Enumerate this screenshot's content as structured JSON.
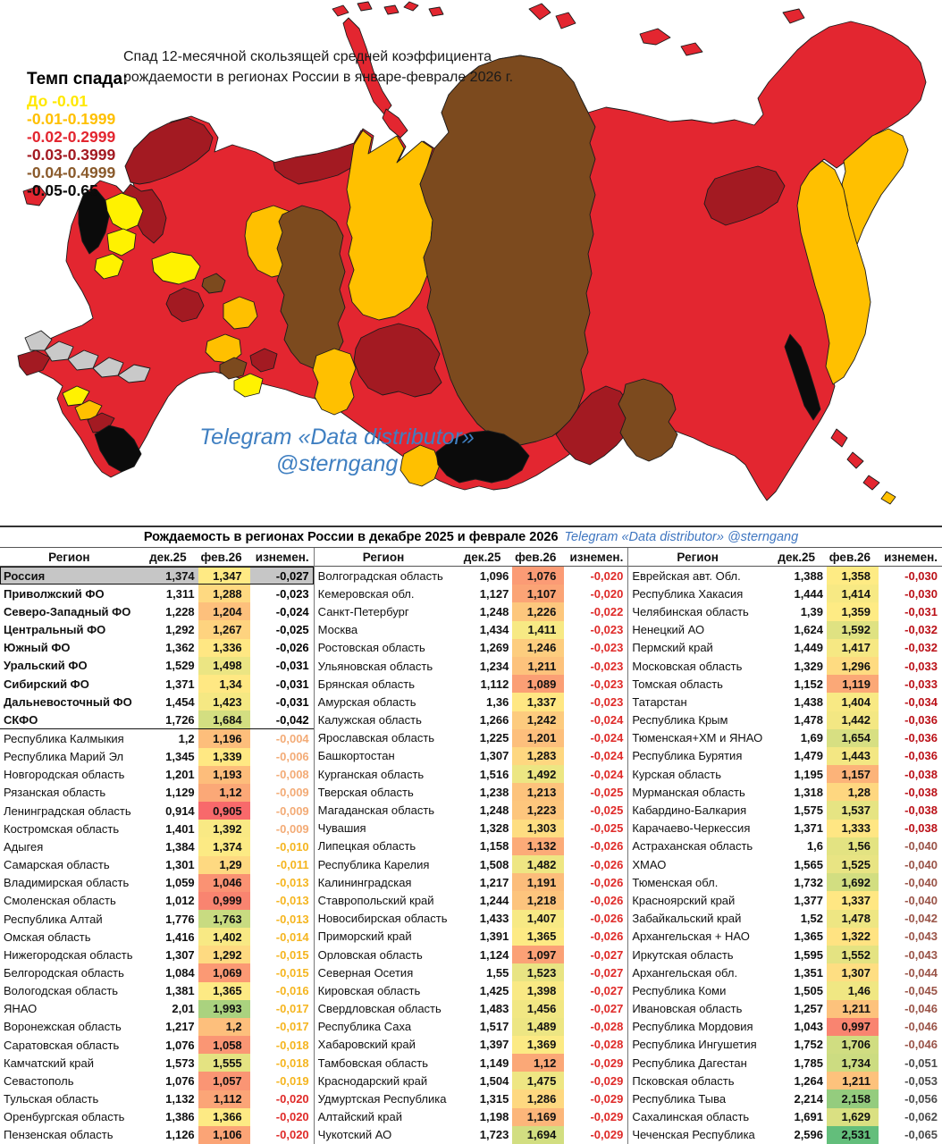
{
  "map": {
    "title_line1": "Спад 12-месячной скользящей средней коэффициента",
    "title_line2": "рождаемости в регионах России в январе-феврале 2026 г.",
    "legend_title": "Темп спада:",
    "legend_items": [
      {
        "label": "До -0.01",
        "color": "#ffe800"
      },
      {
        "label": "-0.01-0.1999",
        "color": "#ffc000"
      },
      {
        "label": "-0.02-0.2999",
        "color": "#e32630"
      },
      {
        "label": "-0.03-0.3999",
        "color": "#a31a22"
      },
      {
        "label": "-0.04-0.4999",
        "color": "#8a5a2b"
      },
      {
        "label": "-0.05-0.65",
        "color": "#0b0b0b"
      }
    ],
    "watermark_line1": "Telegram «Data distributor»",
    "watermark_line2": "@sterngang",
    "palette": {
      "red": "#e32630",
      "dark_red": "#a31a22",
      "brown": "#7c4a1e",
      "gold": "#ffc000",
      "yellow": "#fff200",
      "black": "#0b0b0b",
      "no_data_gray": "#c9c9c9"
    }
  },
  "table": {
    "title": "Рождаемость в регионах России в декабре 2025 и феврале 2026",
    "title_watermark": "Telegram «Data distributor» @sterngang",
    "columns": {
      "region": "Регион",
      "dec": "дек.25",
      "feb": "фев.26",
      "chg": "изнемен."
    }
  },
  "chart_data": {
    "type": "table",
    "title": "Рождаемость в регионах России в декабре 2025 и феврале 2026",
    "columns": [
      "Регион",
      "дек.25",
      "фев.26",
      "изнемен."
    ],
    "color_scale": {
      "min_value": 0.905,
      "mid_value": 1.35,
      "max_value": 2.531,
      "min_color": "#f8696b",
      "mid_color": "#ffeb84",
      "max_color": "#63be7b"
    },
    "groups": [
      [
        {
          "name": "Россия",
          "dec": "1,374",
          "feb": "1,347",
          "chg": "-0,027",
          "bold": true,
          "gray": true
        },
        {
          "name": "Приволжский ФО",
          "dec": "1,311",
          "feb": "1,288",
          "chg": "-0,023",
          "bold": true
        },
        {
          "name": "Северо-Западный ФО",
          "dec": "1,228",
          "feb": "1,204",
          "chg": "-0,024",
          "bold": true
        },
        {
          "name": "Центральный ФО",
          "dec": "1,292",
          "feb": "1,267",
          "chg": "-0,025",
          "bold": true
        },
        {
          "name": "Южный ФО",
          "dec": "1,362",
          "feb": "1,336",
          "chg": "-0,026",
          "bold": true
        },
        {
          "name": "Уральский ФО",
          "dec": "1,529",
          "feb": "1,498",
          "chg": "-0,031",
          "bold": true
        },
        {
          "name": "Сибирский ФО",
          "dec": "1,371",
          "feb": "1,34",
          "chg": "-0,031",
          "bold": true
        },
        {
          "name": "Дальневосточный ФО",
          "dec": "1,454",
          "feb": "1,423",
          "chg": "-0,031",
          "bold": true
        },
        {
          "name": "СКФО",
          "dec": "1,726",
          "feb": "1,684",
          "chg": "-0,042",
          "bold": true,
          "blockEnd": true
        },
        {
          "name": "Республика Калмыкия",
          "dec": "1,2",
          "feb": "1,196",
          "chg": "-0,004"
        },
        {
          "name": "Республика Марий Эл",
          "dec": "1,345",
          "feb": "1,339",
          "chg": "-0,006"
        },
        {
          "name": "Новгородская область",
          "dec": "1,201",
          "feb": "1,193",
          "chg": "-0,008"
        },
        {
          "name": "Рязанская область",
          "dec": "1,129",
          "feb": "1,12",
          "chg": "-0,009"
        },
        {
          "name": "Ленинградская область",
          "dec": "0,914",
          "feb": "0,905",
          "chg": "-0,009"
        },
        {
          "name": "Костромская область",
          "dec": "1,401",
          "feb": "1,392",
          "chg": "-0,009"
        },
        {
          "name": "Адыгея",
          "dec": "1,384",
          "feb": "1,374",
          "chg": "-0,010"
        },
        {
          "name": "Самарская область",
          "dec": "1,301",
          "feb": "1,29",
          "chg": "-0,011"
        },
        {
          "name": "Владимирская область",
          "dec": "1,059",
          "feb": "1,046",
          "chg": "-0,013"
        },
        {
          "name": "Смоленская область",
          "dec": "1,012",
          "feb": "0,999",
          "chg": "-0,013"
        },
        {
          "name": "Республика Алтай",
          "dec": "1,776",
          "feb": "1,763",
          "chg": "-0,013"
        },
        {
          "name": "Омская область",
          "dec": "1,416",
          "feb": "1,402",
          "chg": "-0,014"
        },
        {
          "name": "Нижегородская область",
          "dec": "1,307",
          "feb": "1,292",
          "chg": "-0,015"
        },
        {
          "name": "Белгородская область",
          "dec": "1,084",
          "feb": "1,069",
          "chg": "-0,015"
        },
        {
          "name": "Вологодская область",
          "dec": "1,381",
          "feb": "1,365",
          "chg": "-0,016"
        },
        {
          "name": "ЯНАО",
          "dec": "2,01",
          "feb": "1,993",
          "chg": "-0,017"
        },
        {
          "name": "Воронежская область",
          "dec": "1,217",
          "feb": "1,2",
          "chg": "-0,017"
        },
        {
          "name": "Саратовская область",
          "dec": "1,076",
          "feb": "1,058",
          "chg": "-0,018"
        },
        {
          "name": "Камчатский край",
          "dec": "1,573",
          "feb": "1,555",
          "chg": "-0,018"
        },
        {
          "name": "Севастополь",
          "dec": "1,076",
          "feb": "1,057",
          "chg": "-0,019"
        },
        {
          "name": "Тульская область",
          "dec": "1,132",
          "feb": "1,112",
          "chg": "-0,020"
        },
        {
          "name": "Оренбургская область",
          "dec": "1,386",
          "feb": "1,366",
          "chg": "-0,020"
        },
        {
          "name": "Пензенская область",
          "dec": "1,126",
          "feb": "1,106",
          "chg": "-0,020"
        }
      ],
      [
        {
          "name": "Волгоградская область",
          "dec": "1,096",
          "feb": "1,076",
          "chg": "-0,020"
        },
        {
          "name": "Кемеровская обл.",
          "dec": "1,127",
          "feb": "1,107",
          "chg": "-0,020"
        },
        {
          "name": "Санкт-Петербург",
          "dec": "1,248",
          "feb": "1,226",
          "chg": "-0,022"
        },
        {
          "name": "Москва",
          "dec": "1,434",
          "feb": "1,411",
          "chg": "-0,023"
        },
        {
          "name": "Ростовская область",
          "dec": "1,269",
          "feb": "1,246",
          "chg": "-0,023"
        },
        {
          "name": "Ульяновская область",
          "dec": "1,234",
          "feb": "1,211",
          "chg": "-0,023"
        },
        {
          "name": "Брянская область",
          "dec": "1,112",
          "feb": "1,089",
          "chg": "-0,023"
        },
        {
          "name": "Амурская область",
          "dec": "1,36",
          "feb": "1,337",
          "chg": "-0,023"
        },
        {
          "name": "Калужская область",
          "dec": "1,266",
          "feb": "1,242",
          "chg": "-0,024"
        },
        {
          "name": "Ярославская область",
          "dec": "1,225",
          "feb": "1,201",
          "chg": "-0,024"
        },
        {
          "name": "Башкортостан",
          "dec": "1,307",
          "feb": "1,283",
          "chg": "-0,024"
        },
        {
          "name": "Курганская область",
          "dec": "1,516",
          "feb": "1,492",
          "chg": "-0,024"
        },
        {
          "name": "Тверская область",
          "dec": "1,238",
          "feb": "1,213",
          "chg": "-0,025"
        },
        {
          "name": "Магаданская область",
          "dec": "1,248",
          "feb": "1,223",
          "chg": "-0,025"
        },
        {
          "name": "Чувашия",
          "dec": "1,328",
          "feb": "1,303",
          "chg": "-0,025"
        },
        {
          "name": "Липецкая область",
          "dec": "1,158",
          "feb": "1,132",
          "chg": "-0,026"
        },
        {
          "name": "Республика Карелия",
          "dec": "1,508",
          "feb": "1,482",
          "chg": "-0,026"
        },
        {
          "name": "Калининградская",
          "dec": "1,217",
          "feb": "1,191",
          "chg": "-0,026"
        },
        {
          "name": "Ставропольский край",
          "dec": "1,244",
          "feb": "1,218",
          "chg": "-0,026"
        },
        {
          "name": "Новосибирская область",
          "dec": "1,433",
          "feb": "1,407",
          "chg": "-0,026"
        },
        {
          "name": "Приморский край",
          "dec": "1,391",
          "feb": "1,365",
          "chg": "-0,026"
        },
        {
          "name": "Орловская область",
          "dec": "1,124",
          "feb": "1,097",
          "chg": "-0,027"
        },
        {
          "name": "Северная Осетия",
          "dec": "1,55",
          "feb": "1,523",
          "chg": "-0,027"
        },
        {
          "name": "Кировская область",
          "dec": "1,425",
          "feb": "1,398",
          "chg": "-0,027"
        },
        {
          "name": "Свердловская область",
          "dec": "1,483",
          "feb": "1,456",
          "chg": "-0,027"
        },
        {
          "name": "Республика Саха",
          "dec": "1,517",
          "feb": "1,489",
          "chg": "-0,028"
        },
        {
          "name": "Хабаровский край",
          "dec": "1,397",
          "feb": "1,369",
          "chg": "-0,028"
        },
        {
          "name": "Тамбовская область",
          "dec": "1,149",
          "feb": "1,12",
          "chg": "-0,029"
        },
        {
          "name": "Краснодарский край",
          "dec": "1,504",
          "feb": "1,475",
          "chg": "-0,029"
        },
        {
          "name": "Удмуртская Республика",
          "dec": "1,315",
          "feb": "1,286",
          "chg": "-0,029"
        },
        {
          "name": "Алтайский край",
          "dec": "1,198",
          "feb": "1,169",
          "chg": "-0,029"
        },
        {
          "name": "Чукотский АО",
          "dec": "1,723",
          "feb": "1,694",
          "chg": "-0,029"
        }
      ],
      [
        {
          "name": "Еврейская авт. Обл.",
          "dec": "1,388",
          "feb": "1,358",
          "chg": "-0,030"
        },
        {
          "name": "Республика Хакасия",
          "dec": "1,444",
          "feb": "1,414",
          "chg": "-0,030"
        },
        {
          "name": "Челябинская область",
          "dec": "1,39",
          "feb": "1,359",
          "chg": "-0,031"
        },
        {
          "name": "Ненецкий АО",
          "dec": "1,624",
          "feb": "1,592",
          "chg": "-0,032"
        },
        {
          "name": "Пермский край",
          "dec": "1,449",
          "feb": "1,417",
          "chg": "-0,032"
        },
        {
          "name": "Московская область",
          "dec": "1,329",
          "feb": "1,296",
          "chg": "-0,033"
        },
        {
          "name": "Томская область",
          "dec": "1,152",
          "feb": "1,119",
          "chg": "-0,033"
        },
        {
          "name": "Татарстан",
          "dec": "1,438",
          "feb": "1,404",
          "chg": "-0,034"
        },
        {
          "name": "Республика Крым",
          "dec": "1,478",
          "feb": "1,442",
          "chg": "-0,036"
        },
        {
          "name": "Тюменская+ХМ и ЯНАО",
          "dec": "1,69",
          "feb": "1,654",
          "chg": "-0,036"
        },
        {
          "name": "Республика Бурятия",
          "dec": "1,479",
          "feb": "1,443",
          "chg": "-0,036"
        },
        {
          "name": "Курская область",
          "dec": "1,195",
          "feb": "1,157",
          "chg": "-0,038"
        },
        {
          "name": "Мурманская область",
          "dec": "1,318",
          "feb": "1,28",
          "chg": "-0,038"
        },
        {
          "name": "Кабардино-Балкария",
          "dec": "1,575",
          "feb": "1,537",
          "chg": "-0,038"
        },
        {
          "name": "Карачаево-Черкессия",
          "dec": "1,371",
          "feb": "1,333",
          "chg": "-0,038"
        },
        {
          "name": "Астраханская область",
          "dec": "1,6",
          "feb": "1,56",
          "chg": "-0,040"
        },
        {
          "name": "ХМАО",
          "dec": "1,565",
          "feb": "1,525",
          "chg": "-0,040"
        },
        {
          "name": "Тюменская обл.",
          "dec": "1,732",
          "feb": "1,692",
          "chg": "-0,040"
        },
        {
          "name": "Красноярский край",
          "dec": "1,377",
          "feb": "1,337",
          "chg": "-0,040"
        },
        {
          "name": "Забайкальский край",
          "dec": "1,52",
          "feb": "1,478",
          "chg": "-0,042"
        },
        {
          "name": "Архангельская + НАО",
          "dec": "1,365",
          "feb": "1,322",
          "chg": "-0,043"
        },
        {
          "name": "Иркутская область",
          "dec": "1,595",
          "feb": "1,552",
          "chg": "-0,043"
        },
        {
          "name": "Архангельская обл.",
          "dec": "1,351",
          "feb": "1,307",
          "chg": "-0,044"
        },
        {
          "name": "Республика Коми",
          "dec": "1,505",
          "feb": "1,46",
          "chg": "-0,045"
        },
        {
          "name": "Ивановская область",
          "dec": "1,257",
          "feb": "1,211",
          "chg": "-0,046"
        },
        {
          "name": "Республика Мордовия",
          "dec": "1,043",
          "feb": "0,997",
          "chg": "-0,046"
        },
        {
          "name": "Республика Ингушетия",
          "dec": "1,752",
          "feb": "1,706",
          "chg": "-0,046"
        },
        {
          "name": "Республика Дагестан",
          "dec": "1,785",
          "feb": "1,734",
          "chg": "-0,051"
        },
        {
          "name": "Псковская область",
          "dec": "1,264",
          "feb": "1,211",
          "chg": "-0,053"
        },
        {
          "name": "Республика Тыва",
          "dec": "2,214",
          "feb": "2,158",
          "chg": "-0,056"
        },
        {
          "name": "Сахалинская область",
          "dec": "1,691",
          "feb": "1,629",
          "chg": "-0,062"
        },
        {
          "name": "Чеченская Республика",
          "dec": "2,596",
          "feb": "2,531",
          "chg": "-0,065"
        }
      ]
    ]
  }
}
